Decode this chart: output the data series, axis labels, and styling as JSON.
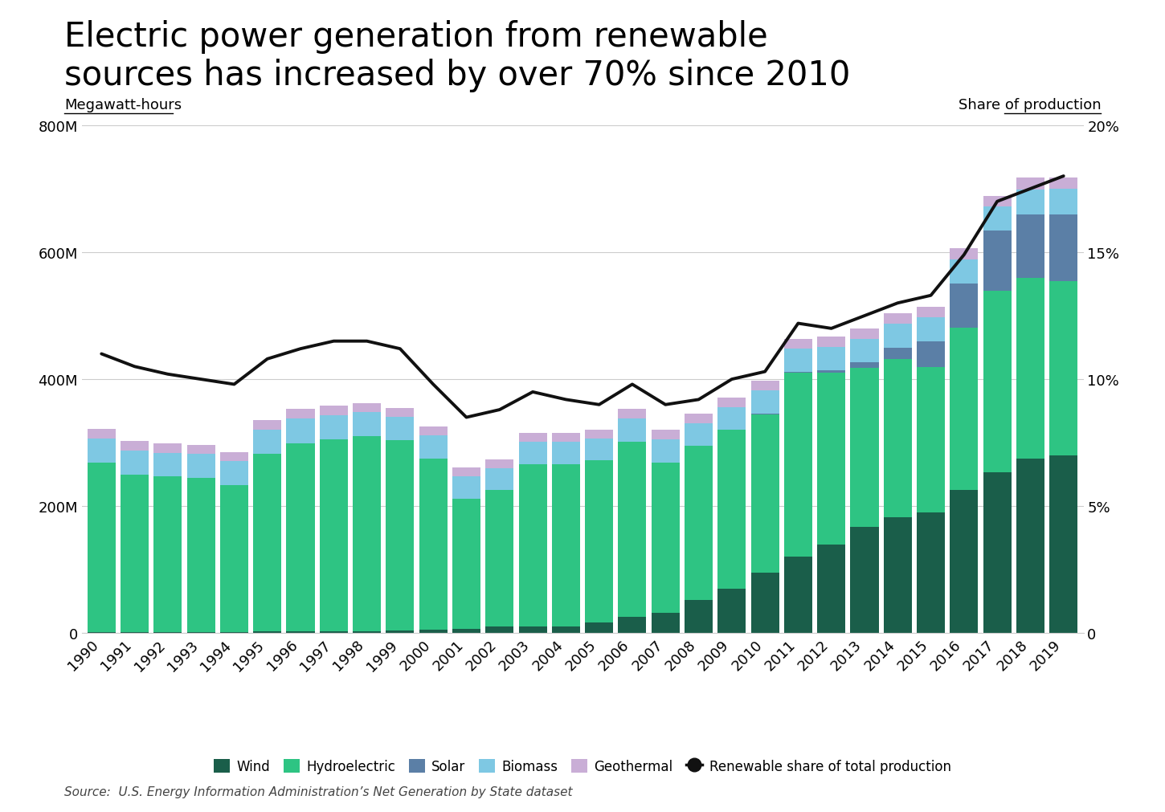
{
  "title_line1": "Electric power generation from renewable",
  "title_line2": "sources has increased by over 70% since 2010",
  "ylabel_left": "Megawatt-hours",
  "ylabel_right": "Share of production",
  "source": "Source:  U.S. Energy Information Administration’s Net Generation by State dataset",
  "years": [
    1990,
    1991,
    1992,
    1993,
    1994,
    1995,
    1996,
    1997,
    1998,
    1999,
    2000,
    2001,
    2002,
    2003,
    2004,
    2005,
    2006,
    2007,
    2008,
    2009,
    2010,
    2011,
    2012,
    2013,
    2014,
    2015,
    2016,
    2017,
    2018,
    2019
  ],
  "wind": [
    2,
    2,
    2,
    2,
    2,
    3,
    3,
    3,
    3,
    4,
    5,
    7,
    10,
    11,
    11,
    17,
    26,
    32,
    52,
    70,
    95,
    120,
    140,
    168,
    182,
    190,
    226,
    254,
    275,
    280
  ],
  "hydro": [
    267,
    248,
    245,
    243,
    231,
    280,
    296,
    302,
    307,
    300,
    270,
    205,
    215,
    255,
    255,
    255,
    275,
    236,
    243,
    250,
    250,
    290,
    270,
    250,
    250,
    229,
    255,
    285,
    285,
    275
  ],
  "solar": [
    0,
    0,
    0,
    0,
    0,
    0,
    0,
    0,
    0,
    0,
    0,
    0,
    0,
    0,
    0,
    0,
    0,
    0,
    0,
    0,
    1,
    2,
    4,
    9,
    18,
    40,
    70,
    95,
    100,
    105
  ],
  "biomass": [
    38,
    38,
    37,
    37,
    38,
    38,
    39,
    38,
    38,
    37,
    36,
    35,
    35,
    35,
    35,
    35,
    37,
    37,
    36,
    36,
    36,
    36,
    37,
    37,
    37,
    38,
    38,
    38,
    39,
    40
  ],
  "geothermal": [
    15,
    15,
    15,
    15,
    14,
    15,
    15,
    15,
    14,
    14,
    14,
    14,
    14,
    14,
    14,
    14,
    15,
    15,
    15,
    15,
    16,
    16,
    16,
    16,
    17,
    17,
    17,
    17,
    18,
    18
  ],
  "share": [
    11.0,
    10.5,
    10.2,
    10.0,
    9.8,
    10.8,
    11.2,
    11.5,
    11.5,
    11.2,
    9.8,
    8.5,
    8.8,
    9.5,
    9.2,
    9.0,
    9.8,
    9.0,
    9.2,
    10.0,
    10.3,
    12.2,
    12.0,
    12.5,
    13.0,
    13.3,
    14.9,
    17.0,
    17.5,
    18.0
  ],
  "wind_color": "#1a5e4a",
  "hydro_color": "#2ec483",
  "solar_color": "#5b7fa6",
  "biomass_color": "#7ec8e3",
  "geothermal_color": "#c9aed6",
  "line_color": "#111111",
  "background": "#ffffff",
  "grid_color": "#cccccc",
  "ylim_left": [
    0,
    800
  ],
  "ylim_right": [
    0,
    20
  ],
  "yticks_left": [
    0,
    200,
    400,
    600,
    800
  ],
  "yticks_right": [
    0,
    5,
    10,
    15,
    20
  ],
  "title_fontsize": 30,
  "label_fontsize": 13,
  "tick_fontsize": 13
}
